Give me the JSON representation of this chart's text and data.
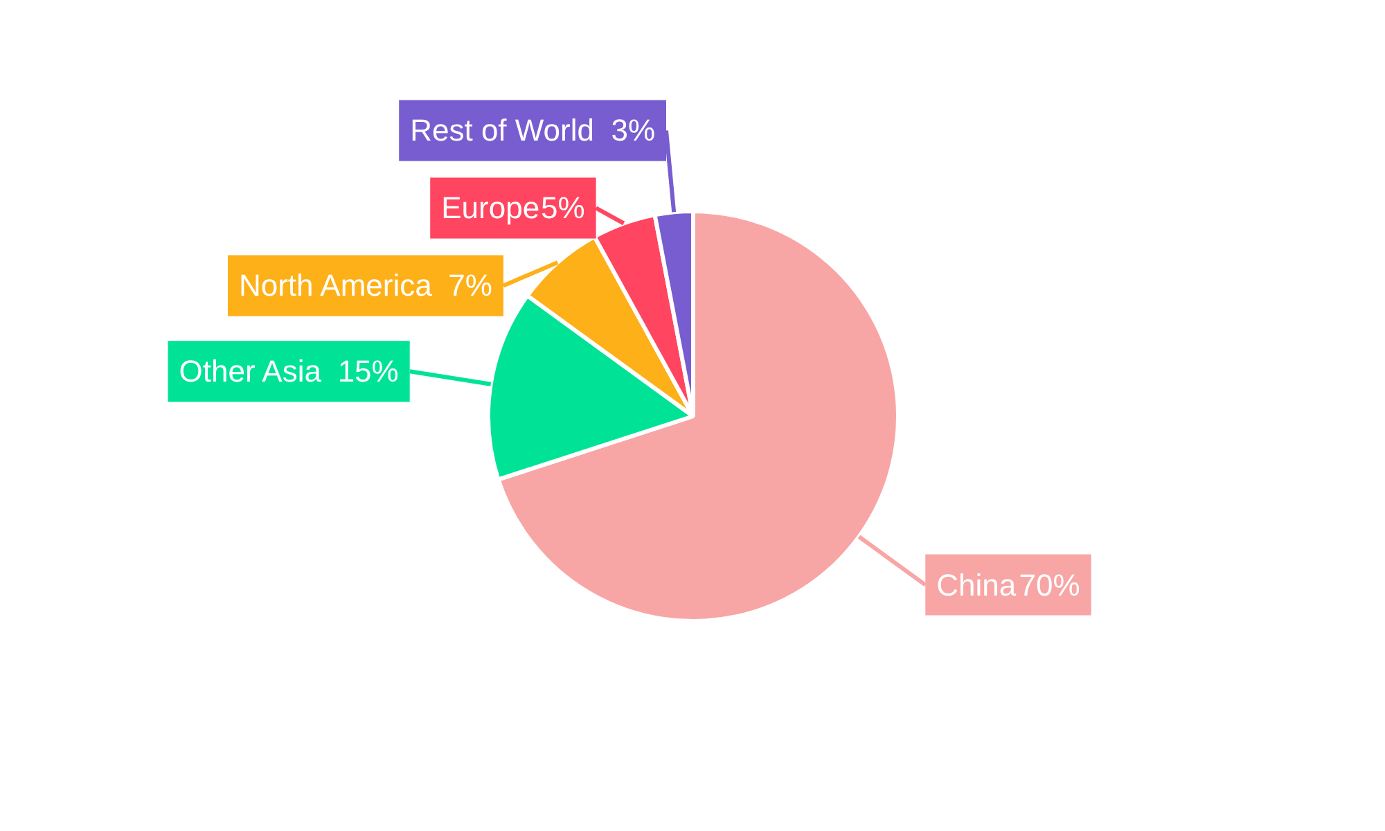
{
  "chart_data": {
    "type": "pie",
    "categories": [
      "China",
      "Other Asia",
      "North America",
      "Europe",
      "Rest of World"
    ],
    "values": [
      70,
      15,
      7,
      5,
      3
    ],
    "colors": [
      "#f8a5a6",
      "#00e396",
      "#feb019",
      "#ff4560",
      "#775dd0"
    ],
    "value_labels": [
      "70%",
      "15%",
      "7%",
      "5%",
      "3%"
    ],
    "legend": false
  }
}
